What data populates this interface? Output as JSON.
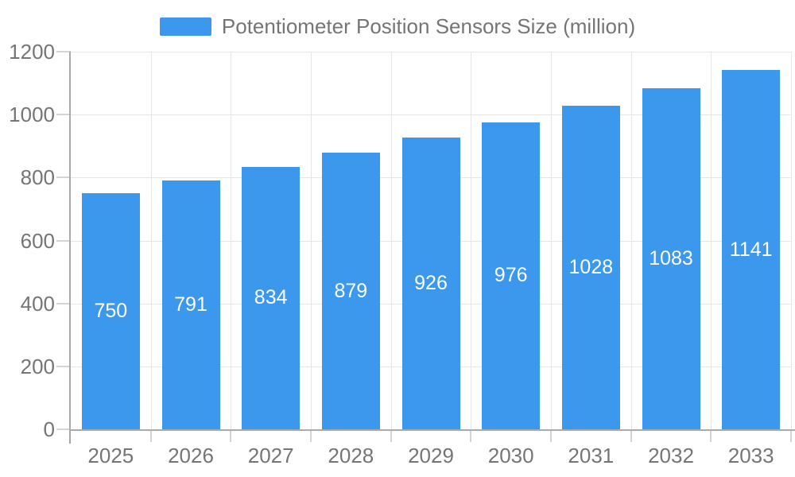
{
  "legend": {
    "items": [
      {
        "label": "Potentiometer Position Sensors Size (million)",
        "swatch_color": "#3b98ec"
      }
    ],
    "position": "top-center"
  },
  "chart_data": {
    "type": "bar",
    "title": "Potentiometer Position Sensors Size (million)",
    "categories": [
      "2025",
      "2026",
      "2027",
      "2028",
      "2029",
      "2030",
      "2031",
      "2032",
      "2033"
    ],
    "values": [
      750,
      791,
      834,
      879,
      926,
      976,
      1028,
      1083,
      1141
    ],
    "xlabel": "",
    "ylabel": "",
    "ylim": [
      0,
      1200
    ],
    "yticks": [
      0,
      200,
      400,
      600,
      800,
      1000,
      1200
    ],
    "grid": true,
    "value_labels": "inside-center-white"
  },
  "colors": {
    "bar": "#3b98ec",
    "grid": "#e6e6e6",
    "axis": "#aaaaaa",
    "tick": "#d4d4d4",
    "text": "#757575",
    "value_label": "#ffffff",
    "background": "#ffffff"
  }
}
